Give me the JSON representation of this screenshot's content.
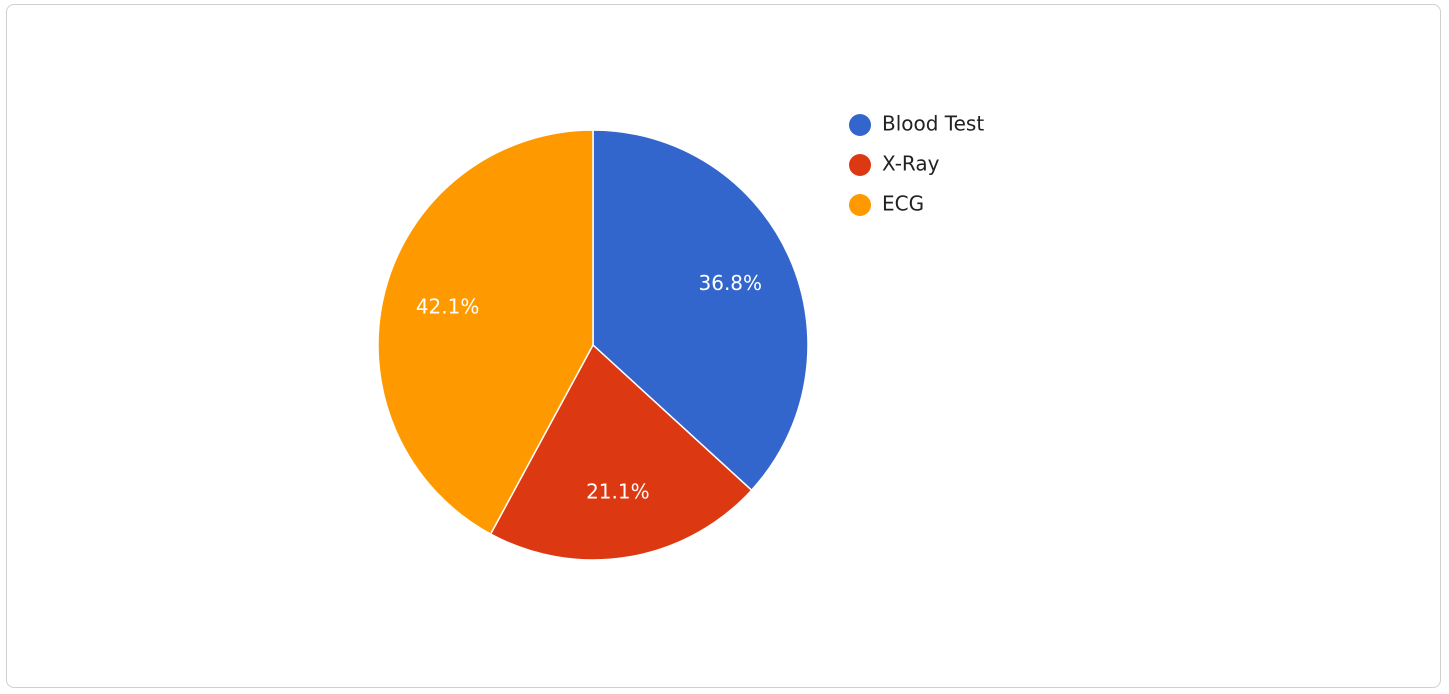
{
  "chart_data": {
    "type": "pie",
    "categories": [
      "Blood Test",
      "X-Ray",
      "ECG"
    ],
    "values": [
      36.8,
      21.1,
      42.1
    ],
    "value_labels": [
      "36.8%",
      "21.1%",
      "42.1%"
    ],
    "colors": [
      "#3366cc",
      "#dc3912",
      "#ff9900"
    ],
    "legend": "right"
  }
}
